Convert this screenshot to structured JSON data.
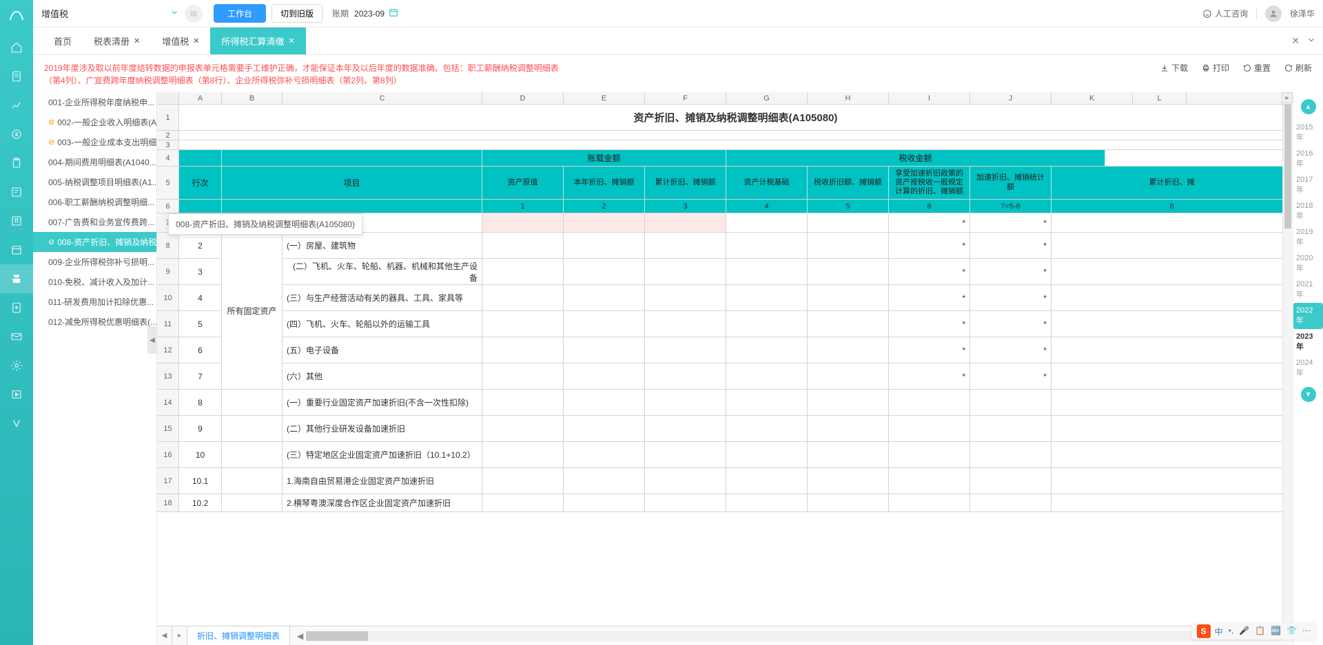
{
  "top": {
    "dropdown_label": "增值税",
    "workbench": "工作台",
    "old_version": "切到旧版",
    "period_label": "账期",
    "period_value": "2023-09",
    "consult": "人工咨询",
    "username": "徐泽华"
  },
  "tabs": {
    "items": [
      {
        "label": "首页",
        "closable": false,
        "active": false
      },
      {
        "label": "税表清册",
        "closable": true,
        "active": false
      },
      {
        "label": "增值税",
        "closable": true,
        "active": false
      },
      {
        "label": "所得税汇算清缴",
        "closable": true,
        "active": true
      }
    ]
  },
  "notice": "2019年度涉及取以前年度结转数据的申报表单元格需要手工维护正确，才能保证本年及以后年度的数据准确。包括：职工薪酬纳税调整明细表（第4列）、广宣费跨年度纳税调整明细表（第8行）、企业所得税弥补亏损明细表（第2列、第8列）",
  "actions": {
    "download": "下载",
    "print": "打印",
    "reset": "重置",
    "refresh": "刷新"
  },
  "tree": {
    "items": [
      {
        "label": "001-企业所得税年度纳税申...",
        "warn": false
      },
      {
        "label": "002-一般企业收入明细表(A1...",
        "warn": true
      },
      {
        "label": "003-一般企业成本支出明细...",
        "warn": true
      },
      {
        "label": "004-期间费用明细表(A1040...",
        "warn": false
      },
      {
        "label": "005-纳税调整项目明细表(A1...",
        "warn": false
      },
      {
        "label": "006-职工薪酬纳税调整明细...",
        "warn": false
      },
      {
        "label": "007-广告费和业务宣传费跨...",
        "warn": false
      },
      {
        "label": "008-资产折旧、摊销及纳税...",
        "warn": true,
        "active": true
      },
      {
        "label": "009-企业所得税弥补亏损明...",
        "warn": false
      },
      {
        "label": "010-免税、减计收入及加计...",
        "warn": false
      },
      {
        "label": "011-研发费用加计扣除优惠...",
        "warn": false
      },
      {
        "label": "012-减免所得税优惠明细表(...",
        "warn": false
      }
    ]
  },
  "tooltip": "008-资产折旧、摊销及纳税调整明细表(A105080)",
  "sheet": {
    "columns": [
      "A",
      "B",
      "C",
      "D",
      "E",
      "F",
      "G",
      "H",
      "I",
      "J",
      "K",
      "L"
    ],
    "title": "资产折旧、摊销及纳税调整明细表(A105080)",
    "header_group1_left": "行次",
    "header_group1_proj": "项目",
    "header_group1_book": "账载金额",
    "header_group1_tax": "税收金额",
    "sub_headers": {
      "d": "资产原值",
      "e": "本年折旧、摊销额",
      "f": "累计折旧、摊销额",
      "g": "资产计税基础",
      "h": "税收折旧额、摊销额",
      "i": "享受加速折旧政策的资产按税收一般规定计算的折旧、摊销额",
      "j": "加速折旧、摊销统计额",
      "k": "累计折旧、摊"
    },
    "col_nums": {
      "d": "1",
      "e": "2",
      "f": "3",
      "g": "4",
      "h": "5",
      "i": "6",
      "j": "7=5-6",
      "k": "8"
    },
    "rows": [
      {
        "n": "7",
        "a": "",
        "b": "",
        "c": "",
        "pink": true
      },
      {
        "n": "8",
        "a": "2",
        "c": "(一）房屋、建筑物"
      },
      {
        "n": "9",
        "a": "3",
        "c": "(二）飞机、火车、轮船、机器、机械和其他生产设备"
      },
      {
        "n": "10",
        "a": "4",
        "c": "(三）与生产经营活动有关的器具、工具、家具等"
      },
      {
        "n": "11",
        "a": "5",
        "c": "(四）飞机、火车、轮船以外的运输工具"
      },
      {
        "n": "12",
        "a": "6",
        "c": "(五）电子设备"
      },
      {
        "n": "13",
        "a": "7",
        "c": "(六）其他"
      },
      {
        "n": "14",
        "a": "8",
        "c": "(一）重要行业固定资产加速折旧(不含一次性扣除)"
      },
      {
        "n": "15",
        "a": "9",
        "c": "(二）其他行业研发设备加速折旧"
      },
      {
        "n": "16",
        "a": "10",
        "c": "(三）特定地区企业固定资产加速折旧（10.1+10.2）"
      },
      {
        "n": "17",
        "a": "10.1",
        "c": "1.海南自由贸易港企业固定资产加速折旧"
      },
      {
        "n": "18",
        "a": "10.2",
        "c": "2.横琴粤澳深度合作区企业固定资产加速折旧"
      }
    ],
    "merged_b_label": "所有固定资产",
    "bottom_tab": "折旧、摊销调整明细表"
  },
  "years": {
    "items": [
      "2015年",
      "2016年",
      "2017年",
      "2018年",
      "2019年",
      "2020年",
      "2021年",
      "2022年",
      "2023年",
      "2024年"
    ],
    "active": "2022年",
    "current": "2023年"
  },
  "ime": {
    "logo": "S",
    "items": [
      "中",
      "•,",
      "🎤",
      "📋",
      "🔤",
      "👕",
      "⋯"
    ]
  },
  "colors": {
    "teal": "#3bc9c9",
    "header_bg": "#00c2c2",
    "blue": "#2e9cff",
    "red": "#ff4d4f",
    "pink": "#fde8e8"
  }
}
